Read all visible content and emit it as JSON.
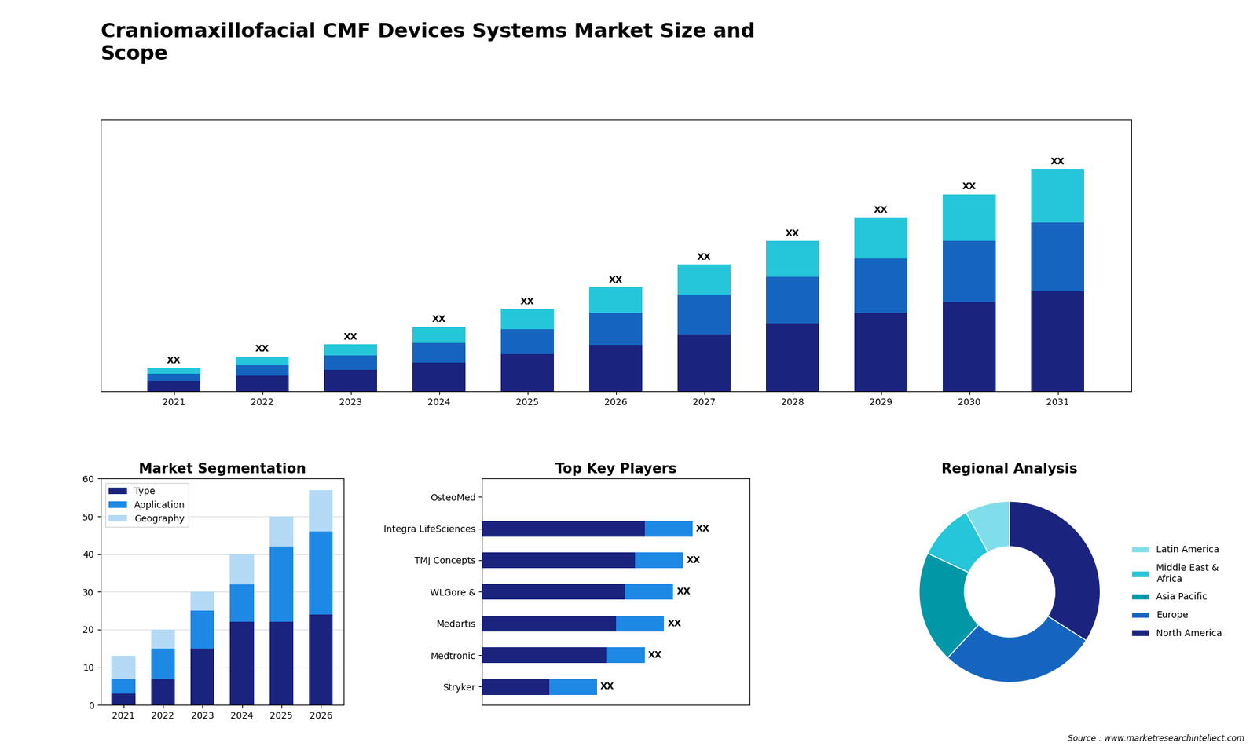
{
  "title": "Craniomaxillofacial CMF Devices Systems Market Size and\nScope",
  "annotations": [
    {
      "text": "Source : www.marketresearchintellect.com"
    }
  ],
  "chart_data": [
    {
      "type": "bar",
      "stacked": true,
      "categories": [
        "2021",
        "2022",
        "2023",
        "2024",
        "2025",
        "2026",
        "2027",
        "2028",
        "2029",
        "2030",
        "2031"
      ],
      "series": [
        {
          "color": "#1a237e",
          "values": [
            1.5,
            2.2,
            3.0,
            4.0,
            5.2,
            6.5,
            8.0,
            9.5,
            11.0,
            12.5,
            14.0
          ]
        },
        {
          "color": "#1565c0",
          "values": [
            1.0,
            1.5,
            2.0,
            2.8,
            3.5,
            4.5,
            5.5,
            6.5,
            7.5,
            8.5,
            9.5
          ]
        },
        {
          "color": "#26c6da",
          "values": [
            0.8,
            1.2,
            1.6,
            2.2,
            2.8,
            3.5,
            4.2,
            5.0,
            5.8,
            6.5,
            7.5
          ]
        }
      ],
      "ylim": [
        0,
        37.82
      ],
      "yticks": [],
      "tick_labels": "x",
      "grid": false,
      "annotations": [
        {
          "text": "XX",
          "category": "2021"
        },
        {
          "text": "XX",
          "category": "2022"
        },
        {
          "text": "XX",
          "category": "2023"
        },
        {
          "text": "XX",
          "category": "2024"
        },
        {
          "text": "XX",
          "category": "2025"
        },
        {
          "text": "XX",
          "category": "2026"
        },
        {
          "text": "XX",
          "category": "2027"
        },
        {
          "text": "XX",
          "category": "2028"
        },
        {
          "text": "XX",
          "category": "2029"
        },
        {
          "text": "XX",
          "category": "2030"
        },
        {
          "text": "XX",
          "category": "2031"
        }
      ]
    },
    {
      "type": "bar",
      "stacked": true,
      "title": "Market Segmentation",
      "categories": [
        "2021",
        "2022",
        "2023",
        "2024",
        "2025",
        "2026"
      ],
      "series": [
        {
          "name": "Type",
          "color": "#1a237e",
          "values": [
            3,
            7,
            15,
            22,
            22,
            24
          ]
        },
        {
          "name": "Application",
          "color": "#1e88e5",
          "values": [
            4,
            8,
            10,
            10,
            20,
            22
          ]
        },
        {
          "name": "Geography",
          "color": "#b3d9f5",
          "values": [
            6,
            5,
            5,
            8,
            8,
            11
          ]
        }
      ],
      "ylim": [
        0,
        60
      ],
      "yticks": [
        0,
        10,
        20,
        30,
        40,
        50,
        60
      ],
      "grid": true,
      "legend": "upper left"
    },
    {
      "type": "bar",
      "orientation": "horizontal",
      "stacked": true,
      "title": "Top Key Players",
      "categories": [
        "OsteoMed",
        "Integra LifeSciences",
        "TMJ Concepts",
        "WLGore &",
        "Medartis",
        "Medtronic",
        "Stryker"
      ],
      "series": [
        {
          "color": "#1a237e",
          "values": [
            0,
            8.5,
            8.0,
            7.5,
            7.0,
            6.5,
            3.5
          ]
        },
        {
          "color": "#1e88e5",
          "values": [
            0,
            2.5,
            2.5,
            2.5,
            2.5,
            2.0,
            2.5
          ]
        }
      ],
      "xlim": [
        0,
        14
      ],
      "xticks": [],
      "tick_labels": "y",
      "grid": false,
      "annotations": [
        {
          "text": "XX",
          "category": "Integra LifeSciences"
        },
        {
          "text": "XX",
          "category": "TMJ Concepts"
        },
        {
          "text": "XX",
          "category": "WLGore &"
        },
        {
          "text": "XX",
          "category": "Medartis"
        },
        {
          "text": "XX",
          "category": "Medtronic"
        },
        {
          "text": "XX",
          "category": "Stryker"
        }
      ]
    },
    {
      "type": "pie",
      "title": "Regional Analysis",
      "categories": [
        "Latin America",
        "Middle East &\nAfrica",
        "Asia Pacific",
        "Europe",
        "North America"
      ],
      "values": [
        8,
        10,
        20,
        28,
        34
      ],
      "colors": [
        "#80deea",
        "#26c6da",
        "#0097a7",
        "#1565c0",
        "#1a237e"
      ],
      "legend": "center left"
    }
  ]
}
